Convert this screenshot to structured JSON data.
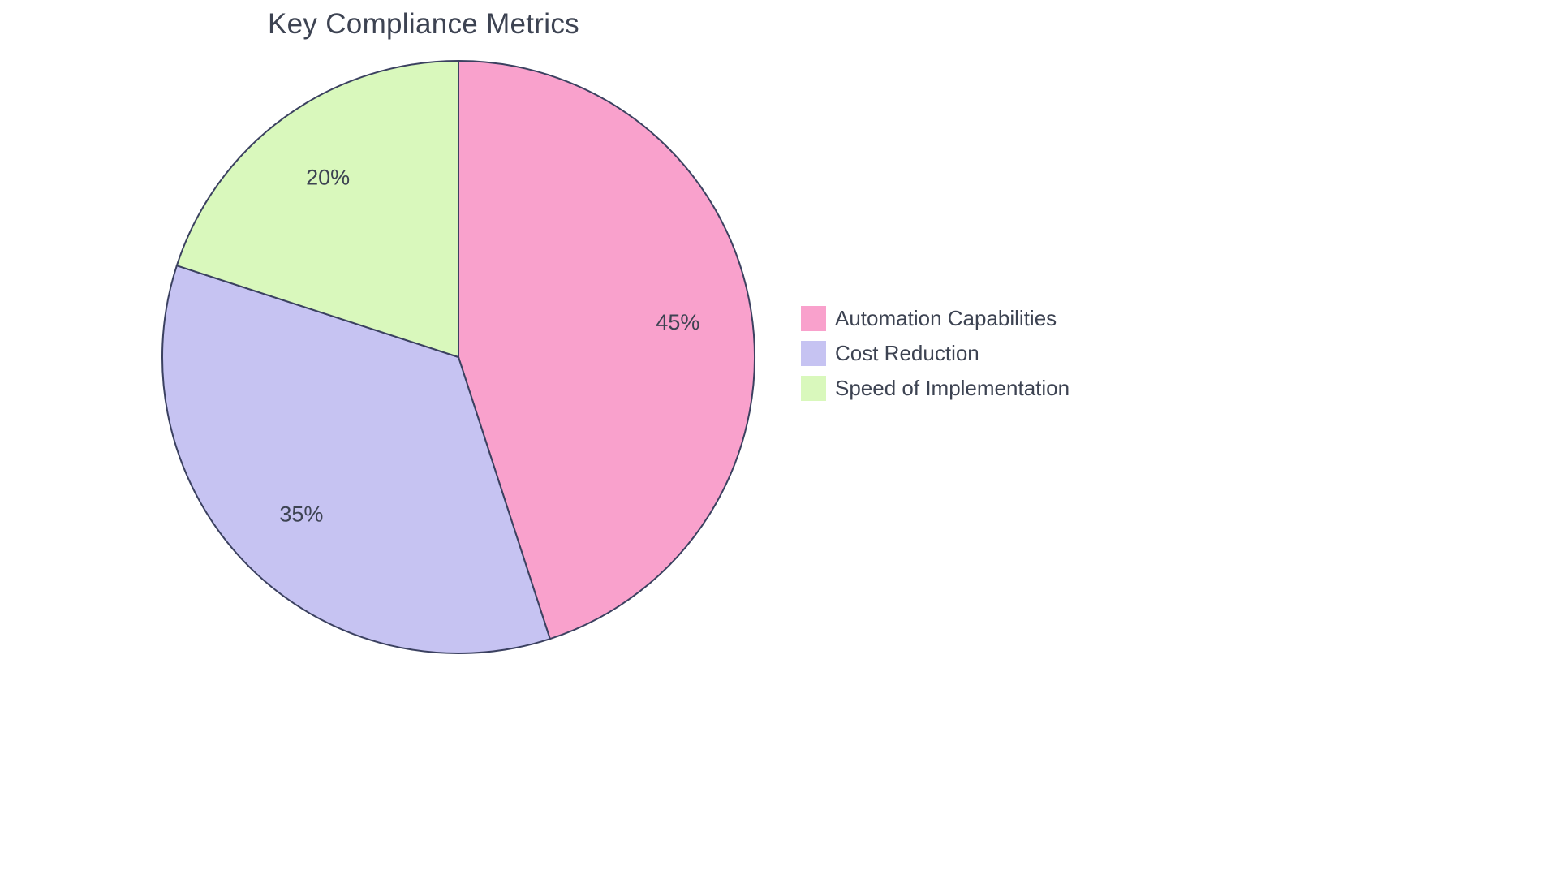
{
  "chart_data": {
    "type": "pie",
    "title": "Key Compliance Metrics",
    "labels": [
      "Automation Capabilities",
      "Cost Reduction",
      "Speed of Implementation"
    ],
    "values": [
      45,
      35,
      20
    ],
    "percent_labels": [
      "45%",
      "35%",
      "20%"
    ],
    "colors": [
      "#F9A1CC",
      "#C6C3F2",
      "#D9F8BC"
    ],
    "stroke_color": "#3B4160",
    "start_angle_deg": 0,
    "direction": "clockwise",
    "legend_position": "right",
    "background": "#FFFFFF",
    "text_color": "#3D4352"
  }
}
